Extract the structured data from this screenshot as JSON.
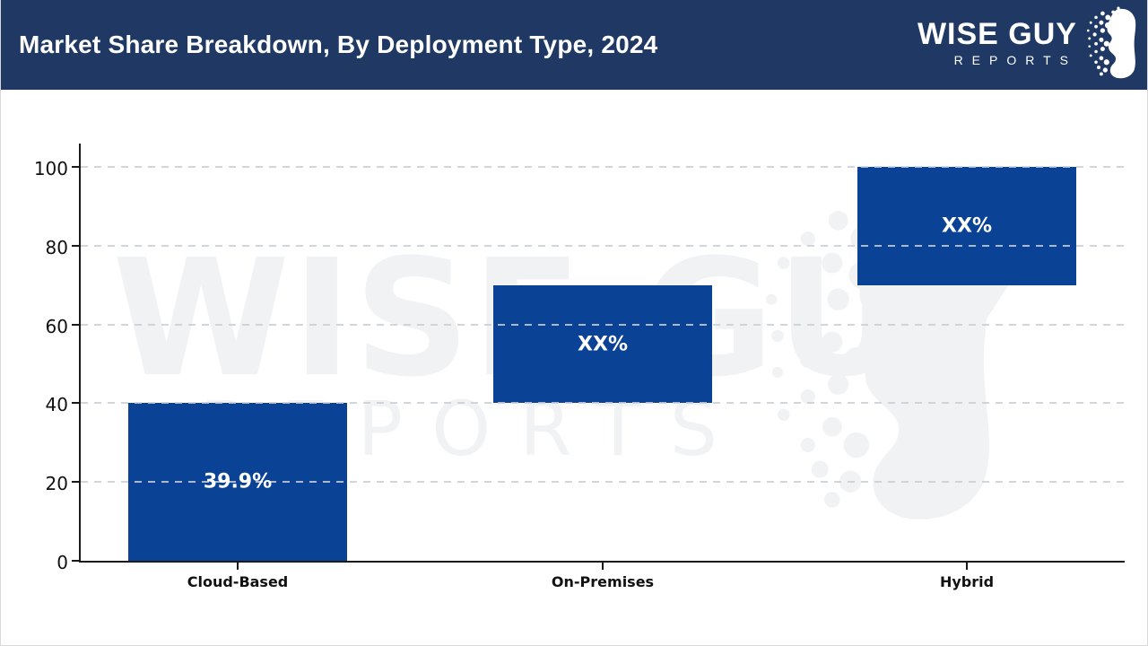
{
  "header": {
    "title": "Market Share Breakdown, By Deployment Type, 2024",
    "logo": {
      "line1": "WISE GUY",
      "line2": "REPORTS"
    }
  },
  "watermark": {
    "line1": "WISE GUY",
    "line2": "REPORTS"
  },
  "colors": {
    "header_bg": "#1f3864",
    "bar": "#0a4296",
    "grid": "#c9ced6",
    "axis": "#1a1a1a",
    "bar_label": "#ffffff",
    "watermark": "#f1f2f4"
  },
  "chart_data": {
    "type": "bar",
    "subtype": "floating-segment (waterfall-style market share)",
    "title": "Market Share Breakdown, By Deployment Type, 2024",
    "categories": [
      "Cloud-Based",
      "On-Premises",
      "Hybrid"
    ],
    "bars": [
      {
        "category": "Cloud-Based",
        "start": 0,
        "end": 40,
        "label": "39.9%"
      },
      {
        "category": "On-Premises",
        "start": 40,
        "end": 70,
        "label": "XX%"
      },
      {
        "category": "Hybrid",
        "start": 70,
        "end": 100,
        "label": "XX%"
      }
    ],
    "yticks": [
      0,
      20,
      40,
      60,
      80,
      100
    ],
    "ylim": [
      0,
      106
    ],
    "xlabel": "",
    "ylabel": "",
    "grid": "horizontal dashed gridlines drawn over bars",
    "legend": "none"
  }
}
